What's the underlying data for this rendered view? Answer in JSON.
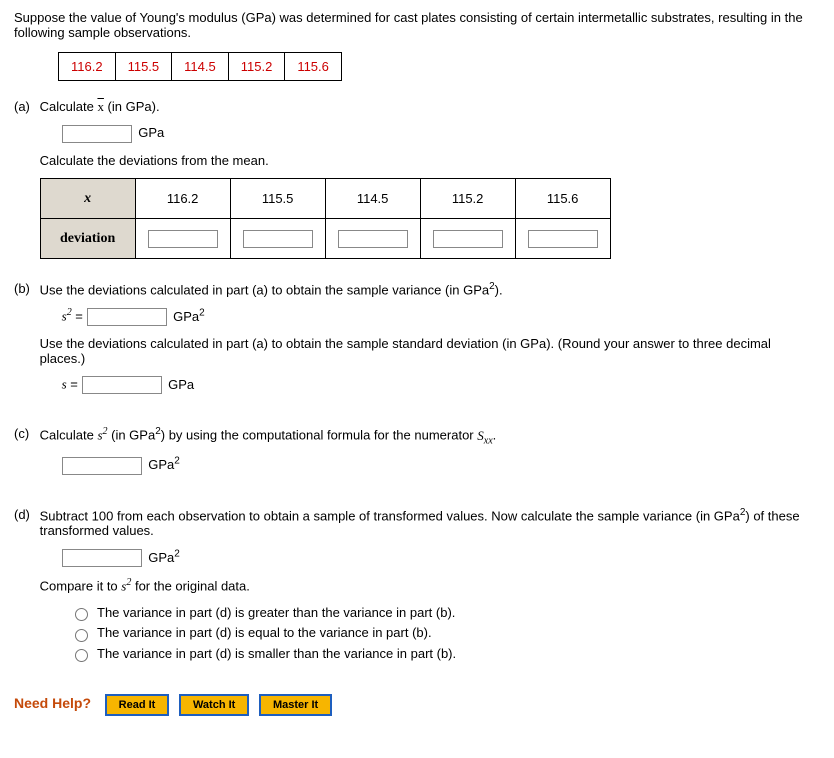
{
  "intro": "Suppose the value of Young's modulus (GPa) was determined for cast plates consisting of certain intermetallic substrates, resulting in the following sample observations.",
  "samples": [
    "116.2",
    "115.5",
    "114.5",
    "115.2",
    "115.6"
  ],
  "a": {
    "label": "(a)",
    "line1_pre": "Calculate ",
    "line1_post": " (in GPa).",
    "unit": "GPa",
    "dev_intro": "Calculate the deviations from the mean.",
    "row1_hdr": "x",
    "row2_hdr": "deviation",
    "cols": [
      "116.2",
      "115.5",
      "114.5",
      "115.2",
      "115.6"
    ]
  },
  "b": {
    "label": "(b)",
    "line1": "Use the deviations calculated in part (a) to obtain the sample variance (in GPa",
    "line1_end": ").",
    "s2_lhs": "s",
    "eq": " = ",
    "unit2": "GPa",
    "line2": "Use the deviations calculated in part (a) to obtain the sample standard deviation (in GPa). (Round your answer to three decimal places.)",
    "s_lhs": "s",
    "unit": "GPa"
  },
  "c": {
    "label": "(c)",
    "line1_a": "Calculate ",
    "line1_b": " (in GPa",
    "line1_c": ") by using the computational formula for the numerator ",
    "line1_d": ".",
    "unit2": "GPa"
  },
  "d": {
    "label": "(d)",
    "line1_a": "Subtract 100 from each observation to obtain a sample of transformed values. Now calculate the sample variance (in GPa",
    "line1_b": ") of these transformed values.",
    "unit2": "GPa",
    "compare_a": "Compare it to ",
    "compare_b": " for the original data.",
    "opt1": "The variance in part (d) is greater than the variance in part (b).",
    "opt2": "The variance in part (d) is equal to the variance in part (b).",
    "opt3": "The variance in part (d) is smaller than the variance in part (b)."
  },
  "help": {
    "label": "Need Help?",
    "read": "Read It",
    "watch": "Watch It",
    "master": "Master It"
  }
}
